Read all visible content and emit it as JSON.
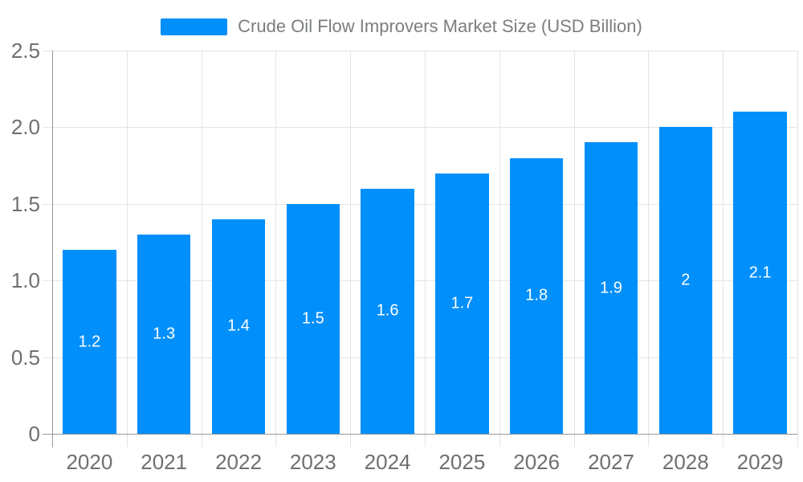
{
  "chart_data": {
    "type": "bar",
    "title": "Crude Oil Flow Improvers Market Size (USD Billion)",
    "xlabel": "",
    "ylabel": "",
    "categories": [
      "2020",
      "2021",
      "2022",
      "2023",
      "2024",
      "2025",
      "2026",
      "2027",
      "2028",
      "2029"
    ],
    "values": [
      1.2,
      1.3,
      1.4,
      1.5,
      1.6,
      1.7,
      1.8,
      1.9,
      2,
      2.1
    ],
    "bar_labels": [
      "1.2",
      "1.3",
      "1.4",
      "1.5",
      "1.6",
      "1.7",
      "1.8",
      "1.9",
      "2",
      "2.1"
    ],
    "ylim": [
      0,
      2.5
    ],
    "y_ticks": [
      0,
      0.5,
      1,
      1.5,
      2,
      2.5
    ],
    "y_tick_labels": [
      "0",
      "0.5",
      "1.0",
      "1.5",
      "2.0",
      "2.5"
    ],
    "grid": "on",
    "legend_position": "top",
    "colors": {
      "bar": "#008FFB",
      "grid": "#e4e4e4",
      "axis": "#989898",
      "axis_label": "#6f6f6f",
      "legend_label": "#7b7e80",
      "bar_label": "#ffffff",
      "background": "#ffffff"
    }
  }
}
